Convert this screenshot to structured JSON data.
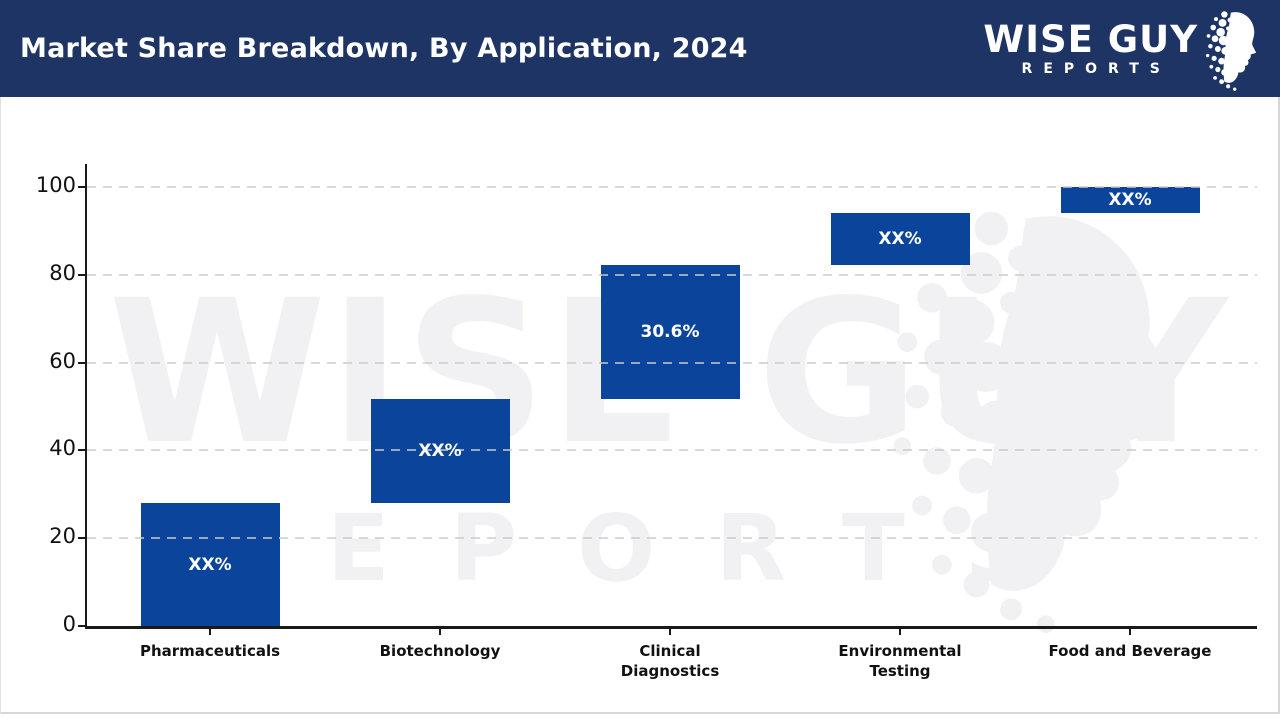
{
  "header": {
    "title": "Market Share Breakdown, By Application, 2024",
    "logo": {
      "line1": "WISE GUY",
      "line2": "REPORTS"
    }
  },
  "watermark": {
    "line1": "WISE GUY",
    "line2": "REPORTS"
  },
  "colors": {
    "header_bg": "#1e3464",
    "bar": "#0a449b",
    "bar_label": "#ffffff",
    "grid": "#cbcbcb",
    "axis": "#1a1a1a",
    "watermark": "#f1f1f3"
  },
  "chart_data": {
    "type": "bar",
    "subtype": "floating-waterfall",
    "title": "Market Share Breakdown, By Application, 2024",
    "xlabel": "",
    "ylabel": "",
    "ylim": [
      0,
      100
    ],
    "yticks": [
      0,
      20,
      40,
      60,
      80,
      100
    ],
    "grid": "horizontal-dashed",
    "legend": "none",
    "categories": [
      "Pharmaceuticals",
      "Biotechnology",
      "Clinical Diagnostics",
      "Environmental Testing",
      "Food and Beverage"
    ],
    "category_label_lines": [
      [
        "Pharmaceuticals"
      ],
      [
        "Biotechnology"
      ],
      [
        "Clinical",
        "Diagnostics"
      ],
      [
        "Environmental",
        "Testing"
      ],
      [
        "Food and Beverage"
      ]
    ],
    "segments": [
      {
        "category": "Pharmaceuticals",
        "start": 0,
        "end": 28.0,
        "value_estimate": 28.0,
        "label": "XX%"
      },
      {
        "category": "Biotechnology",
        "start": 28.0,
        "end": 51.7,
        "value_estimate": 23.7,
        "label": "XX%"
      },
      {
        "category": "Clinical Diagnostics",
        "start": 51.7,
        "end": 82.3,
        "value_estimate": 30.6,
        "label": "30.6%"
      },
      {
        "category": "Environmental Testing",
        "start": 82.3,
        "end": 94.0,
        "value_estimate": 11.7,
        "label": "XX%"
      },
      {
        "category": "Food and Beverage",
        "start": 94.0,
        "end": 100.0,
        "value_estimate": 6.0,
        "label": "XX%"
      }
    ]
  }
}
